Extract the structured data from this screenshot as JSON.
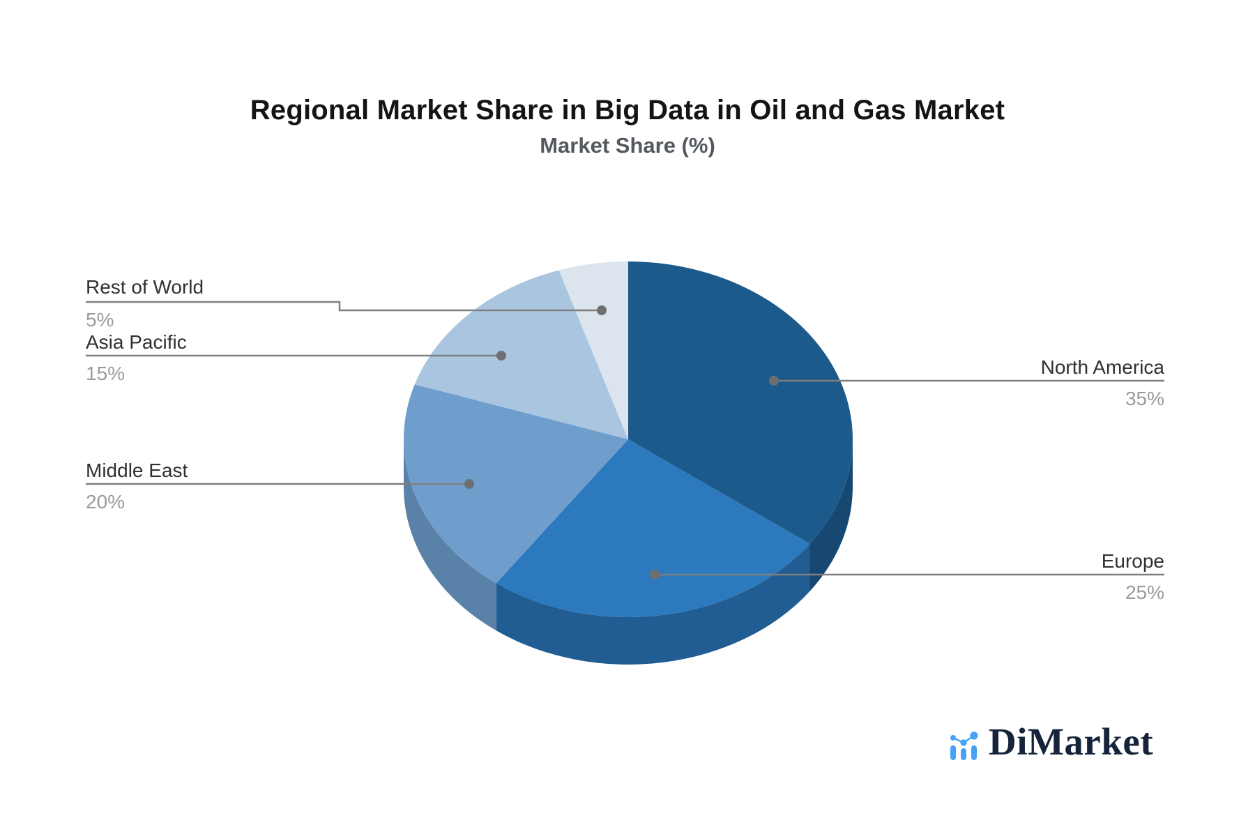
{
  "chart_data": {
    "type": "pie",
    "title": "Regional Market Share in Big Data in Oil and Gas Market",
    "subtitle": "Market Share (%)",
    "labels": [
      "North America",
      "Europe",
      "Middle East",
      "Asia Pacific",
      "Rest of World"
    ],
    "values": [
      35,
      25,
      20,
      15,
      5
    ],
    "percent_labels": [
      "35%",
      "25%",
      "20%",
      "15%",
      "5%"
    ],
    "colors": [
      "#1d5a8c",
      "#2c79be",
      "#6f9ecd",
      "#a9c5e0",
      "#dce4ee"
    ],
    "side_colors": [
      "#174872",
      "#215d92",
      "#5a81a8",
      "#8ba2b9",
      "#b5bcc6"
    ],
    "start_angle_deg": 0,
    "direction": "clockwise",
    "effect": "3d-extruded",
    "legend": "none",
    "background": "#ffffff",
    "style": {
      "leader_line_color": "#7f7f7f",
      "leader_dot_color": "#6f6f6f",
      "label_text_color": "#303030",
      "percent_text_color": "#9a9a9a",
      "title_color": "#141414",
      "subtitle_color": "#54595f"
    }
  },
  "logo": {
    "text": "DiMarket",
    "icon": "bar-line-chart-icon",
    "icon_color": "#45a2f6",
    "text_color": "#16243b"
  }
}
